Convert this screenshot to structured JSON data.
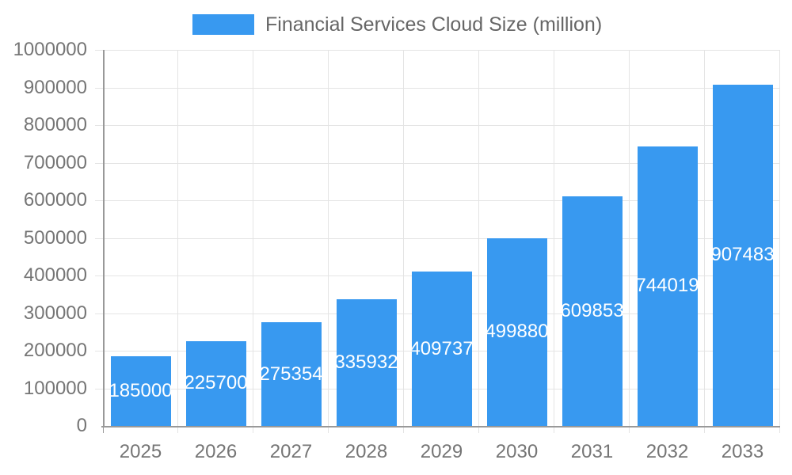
{
  "chart_data": {
    "type": "bar",
    "title": "Financial Services Cloud Size (million)",
    "categories": [
      "2025",
      "2026",
      "2027",
      "2028",
      "2029",
      "2030",
      "2031",
      "2032",
      "2033"
    ],
    "series": [
      {
        "name": "Financial Services Cloud Size (million)",
        "values": [
          185000,
          225700,
          275354,
          335932,
          409737,
          499880,
          609853,
          744019,
          907483
        ]
      }
    ],
    "data_labels": [
      "185000",
      "225700",
      "275354",
      "335932",
      "409737",
      "499880",
      "609853",
      "744019",
      "907483"
    ],
    "xlabel": "",
    "ylabel": "",
    "ylim": [
      0,
      1000000
    ],
    "ytick_step": 100000,
    "ytick_labels": [
      "1000000",
      "900000",
      "800000",
      "700000",
      "600000",
      "500000",
      "400000",
      "300000",
      "200000",
      "100000",
      "0"
    ],
    "grid": "on",
    "legend_position": "top-center"
  },
  "legend": {
    "label": "Financial Services Cloud Size (million)"
  },
  "colors": {
    "bar": "#3899F0",
    "gridline": "#E4E4E4",
    "axis_line": "#999999",
    "tick_label": "#757575",
    "legend_text": "#666666",
    "data_label": "#FFFFFF",
    "background": "#FFFFFF"
  }
}
